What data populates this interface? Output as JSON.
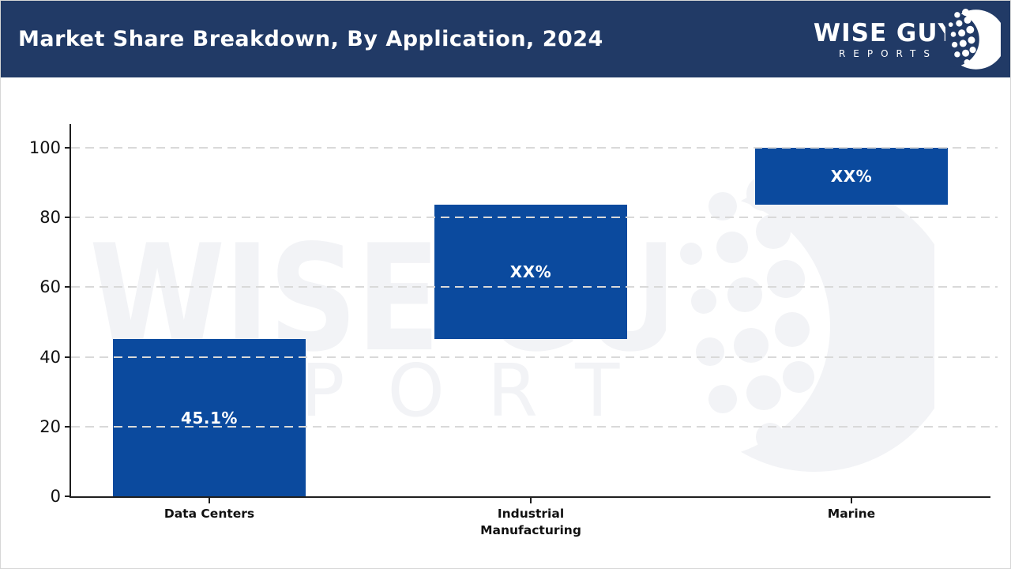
{
  "header": {
    "title": "Market Share Breakdown, By Application, 2024"
  },
  "logo": {
    "line1": "WISE GUY",
    "line2": "REPORTS"
  },
  "watermark": {
    "line1": "WISE GUY",
    "line2": "REPORTS"
  },
  "colors": {
    "header_bg": "#213a66",
    "bar": "#0b4a9e",
    "bar_label": "#ffffff",
    "grid": "#d9d9d9",
    "axis": "#1f1f1f",
    "watermark": "#f2f3f6",
    "page_border": "#d6d6d6"
  },
  "chart_data": {
    "type": "bar",
    "subtype": "waterfall-stacked",
    "title": "Market Share Breakdown, By Application, 2024",
    "categories": [
      "Data Centers",
      "Industrial Manufacturing",
      "Marine"
    ],
    "category_lines": [
      [
        "Data Centers"
      ],
      [
        "Industrial",
        "Manufacturing"
      ],
      [
        "Marine"
      ]
    ],
    "bars": [
      {
        "category": "Data Centers",
        "label": "45.1%",
        "start": 0,
        "end": 45.1,
        "value_pct": 45.1
      },
      {
        "category": "Industrial Manufacturing",
        "label": "XX%",
        "start": 45.1,
        "end": 83.7,
        "value_pct": 38.6
      },
      {
        "category": "Marine",
        "label": "XX%",
        "start": 83.7,
        "end": 100,
        "value_pct": 16.3
      }
    ],
    "xlabel": "",
    "ylabel": "",
    "ylim": [
      0,
      100
    ],
    "yticks": [
      0,
      20,
      40,
      60,
      80,
      100
    ],
    "grid": "dashed-horizontal",
    "legend": "none"
  }
}
